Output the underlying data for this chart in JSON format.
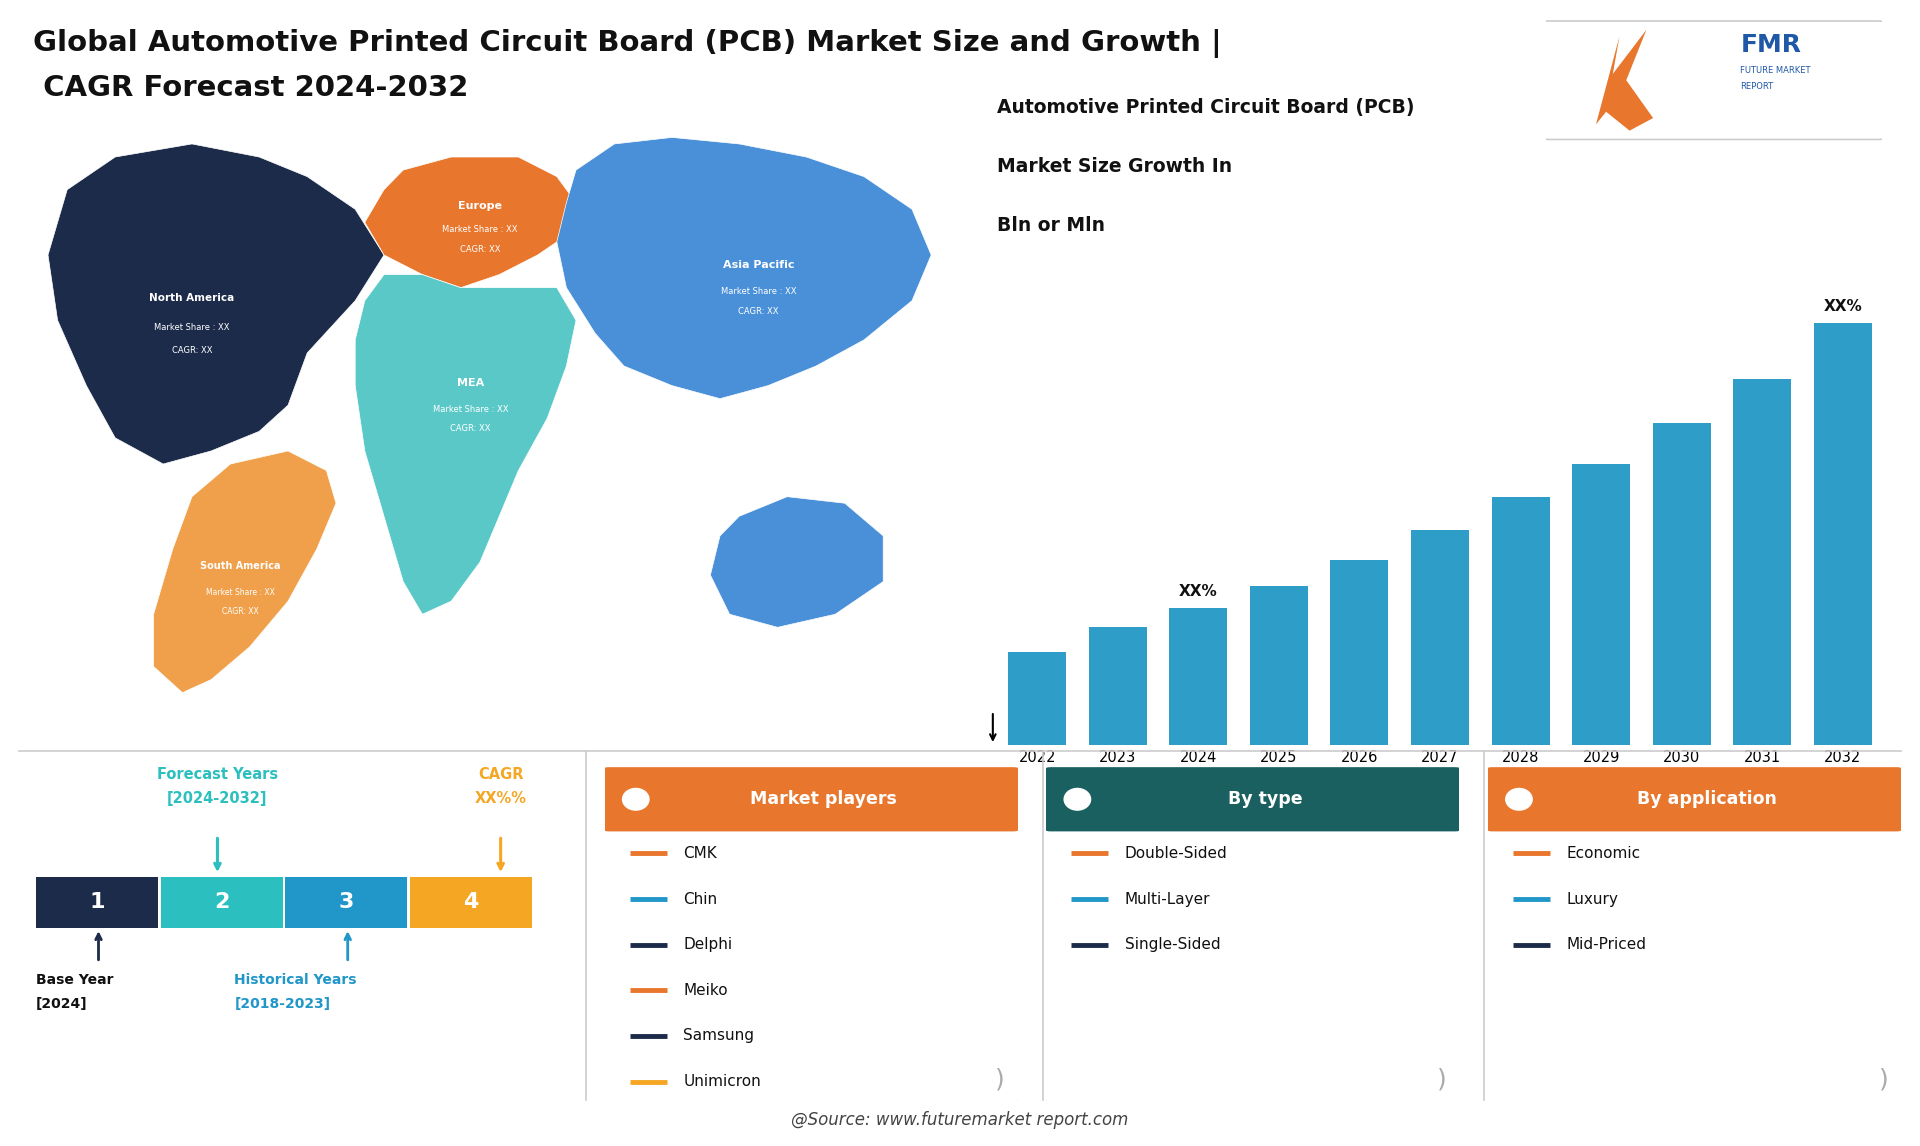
{
  "title_line1": "Global Automotive Printed Circuit Board (PCB) Market Size and Growth |",
  "title_line2": " CAGR Forecast 2024-2032",
  "bar_title_l1": "Automotive Printed Circuit Board (PCB)",
  "bar_title_l2": "Market Size Growth In",
  "bar_title_l3": "Bln or Mln",
  "bar_years": [
    "2022",
    "2023",
    "2024",
    "2025",
    "2026",
    "2027",
    "2028",
    "2029",
    "2030",
    "2031",
    "2032"
  ],
  "bar_values": [
    2.5,
    3.2,
    3.7,
    4.3,
    5.0,
    5.8,
    6.7,
    7.6,
    8.7,
    9.9,
    11.4
  ],
  "bar_color": "#2E9DC8",
  "xx_label_bar2": "XX%",
  "xx_label_last": "XX%",
  "forecast_color": "#2BBFBF",
  "cagr_color": "#F5A623",
  "base_year_arrow_color": "#1C2B4A",
  "historical_arrow_color": "#2196C9",
  "timeline_segments": [
    {
      "label": "1",
      "color": "#1C2B4A"
    },
    {
      "label": "2",
      "color": "#2BBFBF"
    },
    {
      "label": "3",
      "color": "#2196C9"
    },
    {
      "label": "4",
      "color": "#F5A623"
    }
  ],
  "sections": [
    {
      "title": "Market players",
      "title_bg": "#E8762C",
      "items": [
        "CMK",
        "Chin",
        "Delphi",
        "Meiko",
        "Samsung",
        "Unimicron"
      ],
      "item_colors": [
        "#E8762C",
        "#2196C9",
        "#1C2B4A",
        "#E8762C",
        "#1C2B4A",
        "#F5A623"
      ]
    },
    {
      "title": "By type",
      "title_bg": "#1A6060",
      "items": [
        "Double-Sided",
        "Multi-Layer",
        "Single-Sided"
      ],
      "item_colors": [
        "#E8762C",
        "#2196C9",
        "#1C2B4A"
      ]
    },
    {
      "title": "By application",
      "title_bg": "#E8762C",
      "items": [
        "Economic",
        "Luxury",
        "Mid-Priced"
      ],
      "item_colors": [
        "#E8762C",
        "#2196C9",
        "#1C2B4A"
      ]
    }
  ],
  "source_text": "@Source: www.futuremarket report.com",
  "bg_color": "#FFFFFF"
}
